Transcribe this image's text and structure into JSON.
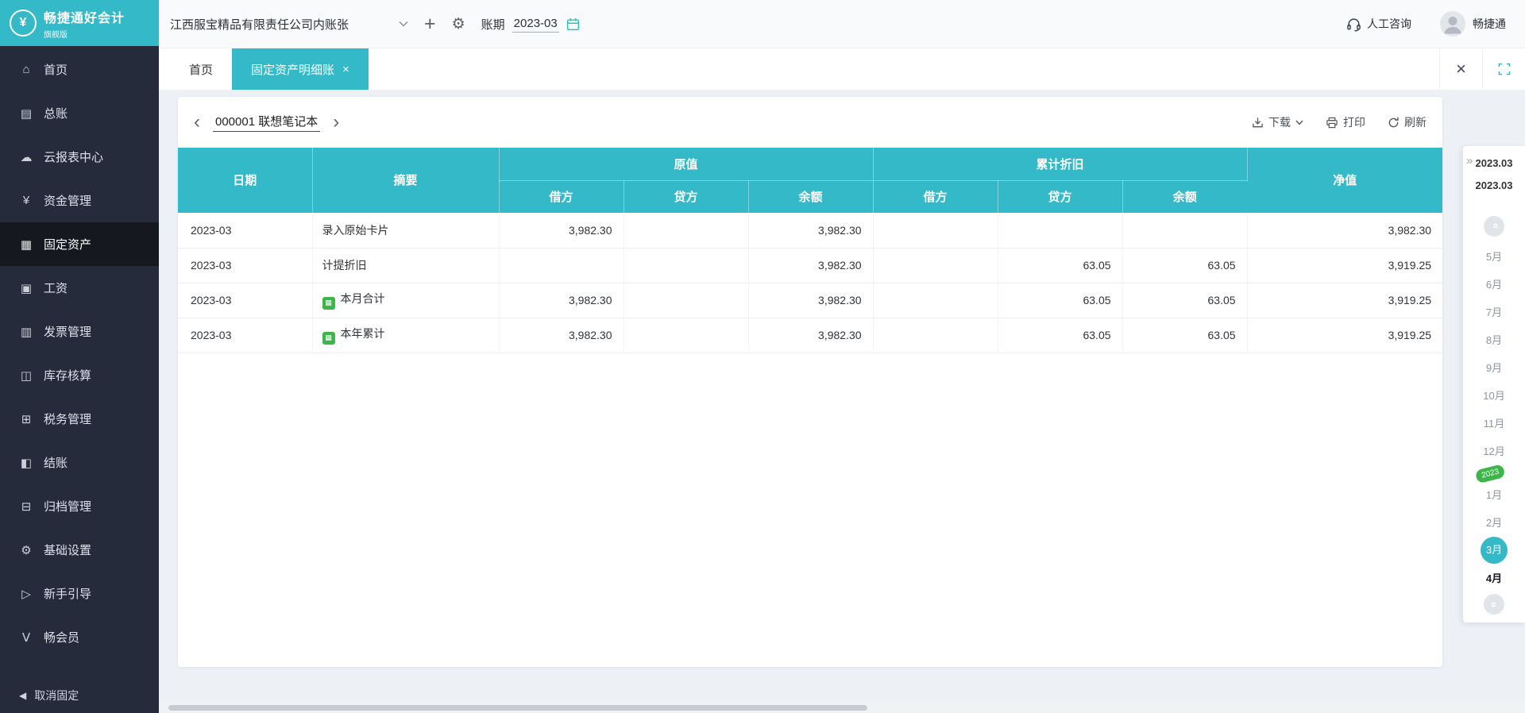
{
  "colors": {
    "accent": "#33b9c8",
    "sidebar_bg": "#252b3b",
    "sidebar_active_bg": "#15181f",
    "content_bg": "#edf1f6",
    "badge_green": "#3db54a"
  },
  "sidebar": {
    "logo_title": "畅捷通好会计",
    "logo_subtitle": "旗舰版",
    "items": [
      {
        "id": "home",
        "label": "首页",
        "active": false
      },
      {
        "id": "ledger",
        "label": "总账",
        "active": false
      },
      {
        "id": "cloud-report",
        "label": "云报表中心",
        "active": false
      },
      {
        "id": "funds",
        "label": "资金管理",
        "active": false
      },
      {
        "id": "fixed-assets",
        "label": "固定资产",
        "active": true
      },
      {
        "id": "payroll",
        "label": "工资",
        "active": false
      },
      {
        "id": "invoice",
        "label": "发票管理",
        "active": false
      },
      {
        "id": "inventory",
        "label": "库存核算",
        "active": false
      },
      {
        "id": "tax",
        "label": "税务管理",
        "active": false
      },
      {
        "id": "closing",
        "label": "结账",
        "active": false
      },
      {
        "id": "archive",
        "label": "归档管理",
        "active": false
      },
      {
        "id": "settings",
        "label": "基础设置",
        "active": false
      },
      {
        "id": "guide",
        "label": "新手引导",
        "active": false
      },
      {
        "id": "member",
        "label": "畅会员",
        "active": false
      }
    ],
    "footer_label": "取消固定"
  },
  "topbar": {
    "company": "江西服宝精品有限责任公司内账张",
    "period_label": "账期",
    "period_value": "2023-03",
    "support_label": "人工咨询",
    "user_name": "畅捷通"
  },
  "tabs": [
    {
      "id": "home",
      "label": "首页",
      "active": false,
      "closable": false
    },
    {
      "id": "fixed-asset-detail-ledger",
      "label": "固定资产明细账",
      "active": true,
      "closable": true
    }
  ],
  "toolbar": {
    "asset_label": "000001  联想笔记本",
    "download_label": "下载",
    "print_label": "打印",
    "refresh_label": "刷新"
  },
  "table": {
    "headers": {
      "date": "日期",
      "summary": "摘要",
      "original_value": "原值",
      "accumulated_depreciation": "累计折旧",
      "net_value": "净值",
      "debit": "借方",
      "credit": "贷方",
      "balance": "余额"
    },
    "rows": [
      {
        "date": "2023-03",
        "summary": "录入原始卡片",
        "badge": false,
        "original": {
          "debit": "3,982.30",
          "credit": "",
          "balance": "3,982.30"
        },
        "accumulated": {
          "debit": "",
          "credit": "",
          "balance": ""
        },
        "net": "3,982.30"
      },
      {
        "date": "2023-03",
        "summary": "计提折旧",
        "badge": false,
        "original": {
          "debit": "",
          "credit": "",
          "balance": "3,982.30"
        },
        "accumulated": {
          "debit": "",
          "credit": "63.05",
          "balance": "63.05"
        },
        "net": "3,919.25"
      },
      {
        "date": "2023-03",
        "summary": "本月合计",
        "badge": true,
        "original": {
          "debit": "3,982.30",
          "credit": "",
          "balance": "3,982.30"
        },
        "accumulated": {
          "debit": "",
          "credit": "63.05",
          "balance": "63.05"
        },
        "net": "3,919.25"
      },
      {
        "date": "2023-03",
        "summary": "本年累计",
        "badge": true,
        "original": {
          "debit": "3,982.30",
          "credit": "",
          "balance": "3,982.30"
        },
        "accumulated": {
          "debit": "",
          "credit": "63.05",
          "balance": "63.05"
        },
        "net": "3,919.25"
      }
    ]
  },
  "timeline": {
    "collapse_icon": "»",
    "period_start": "2023.03",
    "period_end": "2023.03",
    "months": [
      "5月",
      "6月",
      "7月",
      "8月",
      "9月",
      "10月",
      "11月",
      "12月",
      "1月",
      "2月",
      "3月",
      "4月"
    ],
    "year_badge": "2023",
    "year_badge_after": "12月",
    "selected_month": "3月",
    "emphasized_month": "4月"
  }
}
